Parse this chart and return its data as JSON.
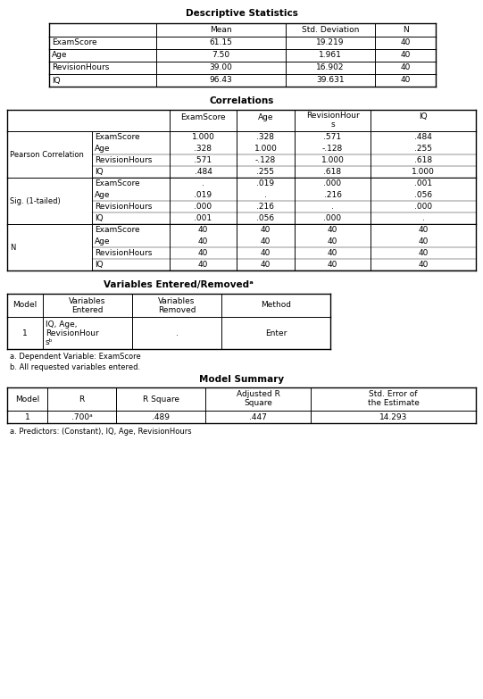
{
  "bg_color": "#ffffff",
  "desc_title": "Descriptive Statistics",
  "desc_headers": [
    "",
    "Mean",
    "Std. Deviation",
    "N"
  ],
  "desc_rows": [
    [
      "ExamScore",
      "61.15",
      "19.219",
      "40"
    ],
    [
      "Age",
      "7.50",
      "1.961",
      "40"
    ],
    [
      "RevisionHours",
      "39.00",
      "16.902",
      "40"
    ],
    [
      "IQ",
      "96.43",
      "39.631",
      "40"
    ]
  ],
  "corr_title": "Correlations",
  "corr_sections": [
    {
      "label": "Pearson Correlation",
      "rows": [
        [
          "ExamScore",
          "1.000",
          ".328",
          ".571",
          ".484"
        ],
        [
          "Age",
          ".328",
          "1.000",
          "-.128",
          ".255"
        ],
        [
          "RevisionHours",
          ".571",
          "-.128",
          "1.000",
          ".618"
        ],
        [
          "IQ",
          ".484",
          ".255",
          ".618",
          "1.000"
        ]
      ]
    },
    {
      "label": "Sig. (1-tailed)",
      "rows": [
        [
          "ExamScore",
          ".",
          ".019",
          ".000",
          ".001"
        ],
        [
          "Age",
          ".019",
          ".",
          ".216",
          ".056"
        ],
        [
          "RevisionHours",
          ".000",
          ".216",
          ".",
          ".000"
        ],
        [
          "IQ",
          ".001",
          ".056",
          ".000",
          "."
        ]
      ]
    },
    {
      "label": "N",
      "rows": [
        [
          "ExamScore",
          "40",
          "40",
          "40",
          "40"
        ],
        [
          "Age",
          "40",
          "40",
          "40",
          "40"
        ],
        [
          "RevisionHours",
          "40",
          "40",
          "40",
          "40"
        ],
        [
          "IQ",
          "40",
          "40",
          "40",
          "40"
        ]
      ]
    }
  ],
  "var_title": "Variables Entered/Removedᵃ",
  "var_notes": [
    "a. Dependent Variable: ExamScore",
    "b. All requested variables entered."
  ],
  "model_title": "Model Summary",
  "model_rows": [
    [
      "1",
      ".700ᵃ",
      ".489",
      ".447",
      "14.293"
    ]
  ],
  "model_notes": [
    "a. Predictors: (Constant), IQ, Age, RevisionHours"
  ]
}
